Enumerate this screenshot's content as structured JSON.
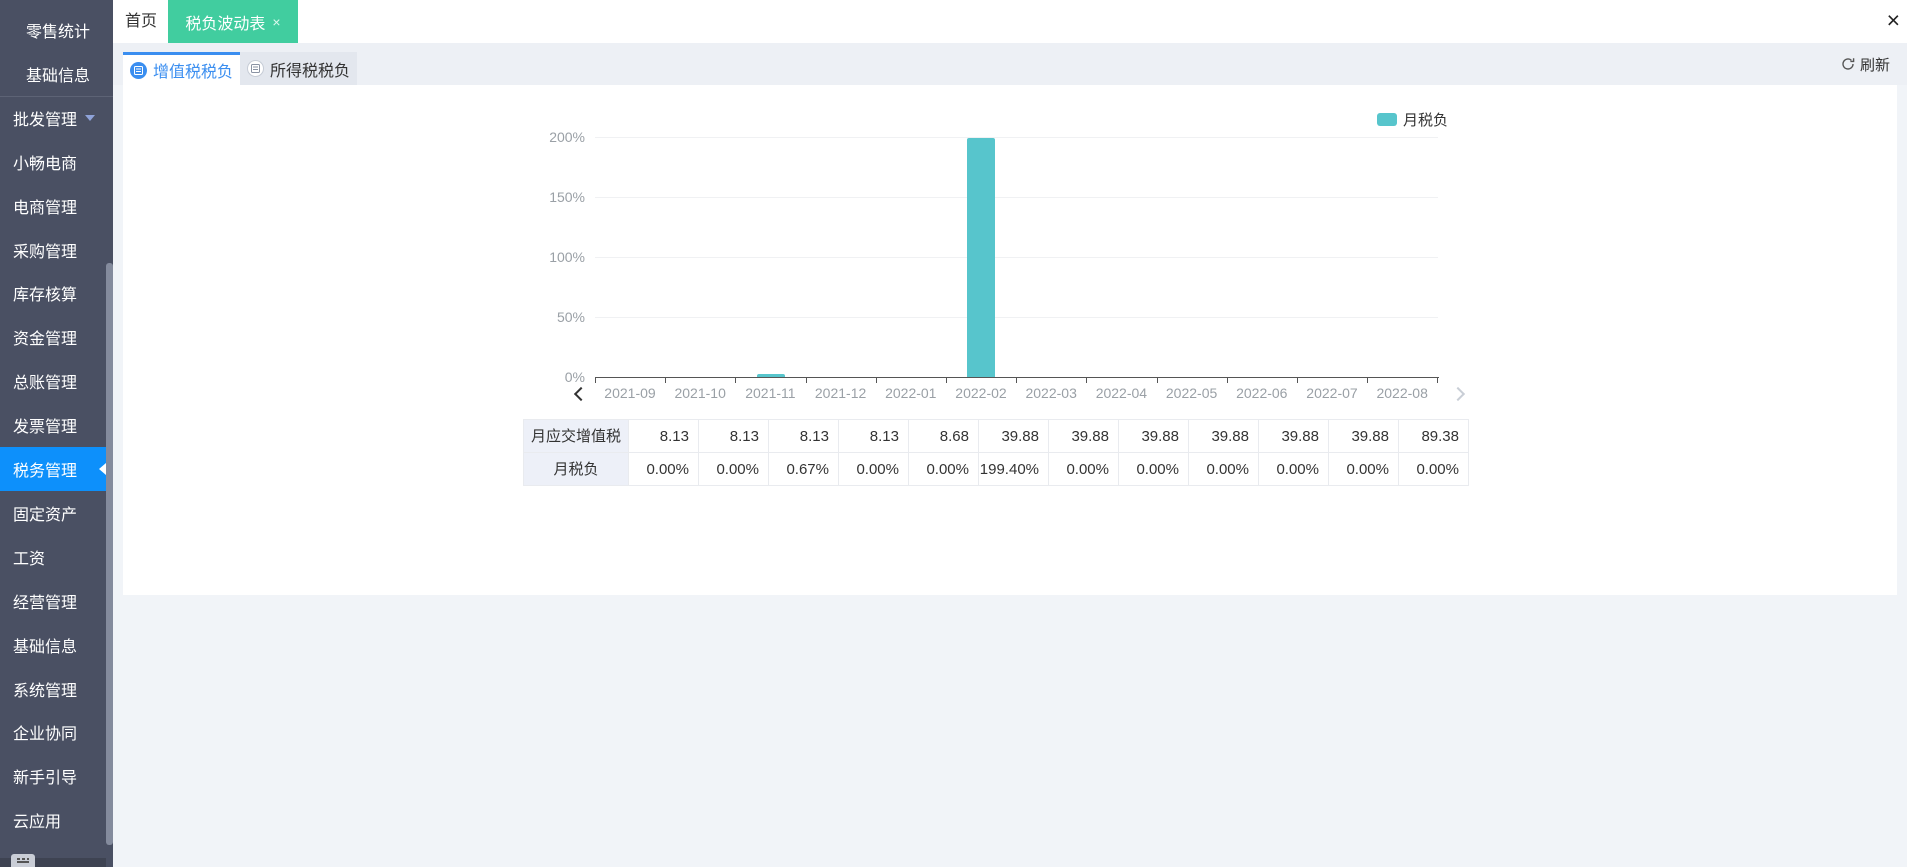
{
  "app": {
    "window_close": "×"
  },
  "sidebar": {
    "items": [
      {
        "label": "零售统计",
        "indent": true
      },
      {
        "label": "基础信息",
        "indent": true,
        "divider_after": true
      },
      {
        "label": "批发管理",
        "caret": true
      },
      {
        "label": "小畅电商"
      },
      {
        "label": "电商管理"
      },
      {
        "label": "采购管理"
      },
      {
        "label": "库存核算"
      },
      {
        "label": "资金管理"
      },
      {
        "label": "总账管理"
      },
      {
        "label": "发票管理"
      },
      {
        "label": "税务管理",
        "active": true
      },
      {
        "label": "固定资产"
      },
      {
        "label": "工资"
      },
      {
        "label": "经营管理"
      },
      {
        "label": "基础信息"
      },
      {
        "label": "系统管理"
      },
      {
        "label": "企业协同"
      },
      {
        "label": "新手引导"
      },
      {
        "label": "云应用"
      }
    ]
  },
  "tabs": {
    "home": "首页",
    "active_tab": "税负波动表",
    "close": "×"
  },
  "subtabs": [
    {
      "label": "增值税税负",
      "active": true
    },
    {
      "label": "所得税税负",
      "active": false
    }
  ],
  "toolbar": {
    "refresh": "刷新"
  },
  "chart_data": {
    "type": "bar",
    "title": "",
    "legend": [
      "月税负"
    ],
    "legend_position": "top-right",
    "categories": [
      "2021-09",
      "2021-10",
      "2021-11",
      "2021-12",
      "2022-01",
      "2022-02",
      "2022-03",
      "2022-04",
      "2022-05",
      "2022-06",
      "2022-07",
      "2022-08"
    ],
    "series": [
      {
        "name": "月税负",
        "unit": "%",
        "color": "#57c5cc",
        "values": [
          0.0,
          0.0,
          0.67,
          0.0,
          0.0,
          199.4,
          0.0,
          0.0,
          0.0,
          0.0,
          0.0,
          0.0
        ]
      }
    ],
    "ylim": [
      0,
      200
    ],
    "yticks": [
      "0%",
      "50%",
      "100%",
      "150%",
      "200%"
    ],
    "grid": true,
    "xlabel": "",
    "ylabel": ""
  },
  "table": {
    "rows": [
      {
        "header": "月应交增值税",
        "values": [
          "8.13",
          "8.13",
          "8.13",
          "8.13",
          "8.68",
          "39.88",
          "39.88",
          "39.88",
          "39.88",
          "39.88",
          "39.88",
          "89.38"
        ]
      },
      {
        "header": "月税负",
        "values": [
          "0.00%",
          "0.00%",
          "0.67%",
          "0.00%",
          "0.00%",
          "199.40%",
          "0.00%",
          "0.00%",
          "0.00%",
          "0.00%",
          "0.00%",
          "0.00%"
        ]
      }
    ]
  }
}
